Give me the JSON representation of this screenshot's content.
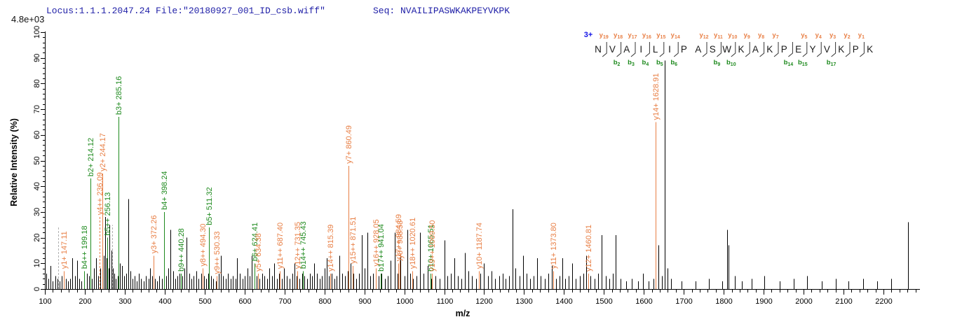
{
  "header": {
    "locus_file": "Locus:1.1.1.2047.24 File:\"20180927_001_ID_csb.wiff\"",
    "seq_label": "Seq: NVAILIPASWKAKPEYVKPK",
    "base_peak_intensity": "4.8e+03"
  },
  "chart_data": {
    "type": "bar",
    "subtype": "ms2-peptide-fragmentation-spectrum",
    "title": "",
    "xlabel": "m/z",
    "ylabel": "Relative Intensity (%)",
    "xlim": [
      100,
      2288
    ],
    "ylim": [
      0,
      100
    ],
    "x_ticks": [
      100,
      200,
      300,
      400,
      500,
      600,
      700,
      800,
      900,
      1000,
      1100,
      1200,
      1300,
      1400,
      1500,
      1600,
      1700,
      1800,
      1900,
      2000,
      2100,
      2200
    ],
    "x_minor_step": 20,
    "y_ticks": [
      0,
      10,
      20,
      30,
      40,
      50,
      60,
      70,
      80,
      90,
      100
    ],
    "y_minor_step": 2,
    "grid": false,
    "legend": "none",
    "colors": {
      "y_ion": "#e87f45",
      "b_ion": "#1e8a1e",
      "peak": "#000000",
      "dashed": "#b0b0b0",
      "header_text": "#2121a8",
      "charge": "#1414e6",
      "axis": "#000000",
      "residue": "#1a1a1a"
    },
    "sequence_annotation": {
      "charge_label": "3+",
      "residues": "NVAILIPASWKAKPEYVKPK",
      "y_ion_numbers": [
        19,
        18,
        17,
        16,
        15,
        14,
        12,
        11,
        10,
        9,
        8,
        7,
        5,
        4,
        3,
        2,
        1
      ],
      "b_ion_numbers": [
        2,
        3,
        4,
        5,
        6,
        9,
        10,
        14,
        15,
        17
      ]
    },
    "labeled_peaks": [
      {
        "label": "y1+ 147.11",
        "mz": 147.11,
        "intensity": 7,
        "series": "y"
      },
      {
        "label": "b4++ 199.18",
        "mz": 199.18,
        "intensity": 7,
        "series": "b"
      },
      {
        "label": "b2+ 214.12",
        "mz": 214.12,
        "intensity": 43,
        "series": "b"
      },
      {
        "label": "y4++ 236.09",
        "mz": 236.09,
        "intensity": 28,
        "series": "y",
        "dashed": true
      },
      {
        "label": "y2+ 244.17",
        "mz": 244.17,
        "intensity": 45,
        "series": "y"
      },
      {
        "label": "b5++ 256.13",
        "mz": 256.13,
        "intensity": 20,
        "series": "b"
      },
      {
        "label": "b3+ 285.16",
        "mz": 285.16,
        "intensity": 67,
        "series": "b"
      },
      {
        "label": "y3+ 372.26",
        "mz": 372.26,
        "intensity": 13,
        "series": "y"
      },
      {
        "label": "b4+ 398.24",
        "mz": 398.24,
        "intensity": 30,
        "series": "b"
      },
      {
        "label": "b9++ 440.28",
        "mz": 440.28,
        "intensity": 6,
        "series": "b"
      },
      {
        "label": "y8++ 494.30",
        "mz": 494.3,
        "intensity": 8,
        "series": "y"
      },
      {
        "label": "b5+ 511.32",
        "mz": 511.32,
        "intensity": 24,
        "series": "b"
      },
      {
        "label": "y9++ 530.33",
        "mz": 530.33,
        "intensity": 5,
        "series": "y"
      },
      {
        "label": "b6+ 624.41",
        "mz": 624.41,
        "intensity": 10,
        "series": "b"
      },
      {
        "label": "y5+ 634.38",
        "mz": 634.38,
        "intensity": 6,
        "series": "y"
      },
      {
        "label": "y11++ 687.40",
        "mz": 687.4,
        "intensity": 7,
        "series": "y"
      },
      {
        "label": "y12++ 731.35",
        "mz": 731.35,
        "intensity": 7,
        "series": "y"
      },
      {
        "label": "b14++ 745.43",
        "mz": 745.43,
        "intensity": 7,
        "series": "b"
      },
      {
        "label": "y14++ 815.39",
        "mz": 815.39,
        "intensity": 6,
        "series": "y"
      },
      {
        "label": "y7+ 860.49",
        "mz": 860.49,
        "intensity": 48,
        "series": "y"
      },
      {
        "label": "y15++ 871.51",
        "mz": 871.51,
        "intensity": 9,
        "series": "y"
      },
      {
        "label": "y16++ 928.05",
        "mz": 928.05,
        "intensity": 8,
        "series": "y"
      },
      {
        "label": "b17++ 941.04",
        "mz": 941.04,
        "intensity": 6,
        "series": "b"
      },
      {
        "label": "y17++ 984.59",
        "mz": 984.59,
        "intensity": 10,
        "series": "y"
      },
      {
        "label": "y8+ 988.58",
        "mz": 988.58,
        "intensity": 11,
        "series": "y"
      },
      {
        "label": "y18++ 1020.61",
        "mz": 1020.61,
        "intensity": 7,
        "series": "y"
      },
      {
        "label": "b10+ 1065.51",
        "mz": 1065.51,
        "intensity": 6,
        "series": "b"
      },
      {
        "label": "y19++ 1069.50",
        "mz": 1069.5,
        "intensity": 6,
        "series": "y"
      },
      {
        "label": "y10+ 1187.74",
        "mz": 1187.74,
        "intensity": 7,
        "series": "y"
      },
      {
        "label": "y11+ 1373.80",
        "mz": 1373.8,
        "intensity": 7,
        "series": "y"
      },
      {
        "label": "y12+ 1460.81",
        "mz": 1460.81,
        "intensity": 6,
        "series": "y"
      },
      {
        "label": "y14+ 1628.91",
        "mz": 1628.91,
        "intensity": 65,
        "series": "y"
      }
    ],
    "dashed_peaks": [
      [
        133,
        24
      ],
      [
        269,
        25
      ]
    ],
    "unlabeled_peaks": [
      [
        104,
        6
      ],
      [
        109,
        4
      ],
      [
        114,
        9
      ],
      [
        119,
        3
      ],
      [
        126,
        5
      ],
      [
        131,
        4
      ],
      [
        137,
        3
      ],
      [
        142,
        5
      ],
      [
        152,
        4
      ],
      [
        158,
        3
      ],
      [
        163,
        4
      ],
      [
        169,
        12
      ],
      [
        175,
        5
      ],
      [
        181,
        11
      ],
      [
        186,
        4
      ],
      [
        192,
        3
      ],
      [
        198,
        5
      ],
      [
        205,
        6
      ],
      [
        211,
        5
      ],
      [
        217,
        4
      ],
      [
        223,
        8
      ],
      [
        228,
        12
      ],
      [
        233,
        5
      ],
      [
        239,
        8
      ],
      [
        248,
        13
      ],
      [
        251,
        28
      ],
      [
        255,
        12
      ],
      [
        259,
        8
      ],
      [
        262,
        25
      ],
      [
        266,
        15
      ],
      [
        270,
        8
      ],
      [
        274,
        6
      ],
      [
        278,
        4
      ],
      [
        283,
        5
      ],
      [
        288,
        10
      ],
      [
        293,
        9
      ],
      [
        298,
        5
      ],
      [
        304,
        6
      ],
      [
        309,
        35
      ],
      [
        314,
        7
      ],
      [
        319,
        4
      ],
      [
        325,
        5
      ],
      [
        330,
        3
      ],
      [
        336,
        6
      ],
      [
        341,
        4
      ],
      [
        347,
        3
      ],
      [
        353,
        5
      ],
      [
        359,
        4
      ],
      [
        364,
        8
      ],
      [
        369,
        5
      ],
      [
        375,
        4
      ],
      [
        381,
        3
      ],
      [
        387,
        5
      ],
      [
        393,
        4
      ],
      [
        399,
        6
      ],
      [
        404,
        5
      ],
      [
        409,
        8
      ],
      [
        415,
        23
      ],
      [
        421,
        7
      ],
      [
        427,
        4
      ],
      [
        432,
        5
      ],
      [
        438,
        6
      ],
      [
        444,
        5
      ],
      [
        450,
        8
      ],
      [
        455,
        20
      ],
      [
        461,
        6
      ],
      [
        467,
        4
      ],
      [
        473,
        5
      ],
      [
        479,
        7
      ],
      [
        485,
        4
      ],
      [
        491,
        6
      ],
      [
        498,
        5
      ],
      [
        504,
        4
      ],
      [
        510,
        6
      ],
      [
        516,
        5
      ],
      [
        522,
        4
      ],
      [
        529,
        3
      ],
      [
        535,
        6
      ],
      [
        540,
        13
      ],
      [
        546,
        5
      ],
      [
        553,
        4
      ],
      [
        559,
        6
      ],
      [
        565,
        4
      ],
      [
        571,
        5
      ],
      [
        577,
        4
      ],
      [
        582,
        12
      ],
      [
        589,
        6
      ],
      [
        595,
        4
      ],
      [
        601,
        5
      ],
      [
        607,
        8
      ],
      [
        613,
        5
      ],
      [
        618,
        13
      ],
      [
        625,
        6
      ],
      [
        631,
        5
      ],
      [
        638,
        4
      ],
      [
        644,
        6
      ],
      [
        650,
        5
      ],
      [
        656,
        4
      ],
      [
        662,
        8
      ],
      [
        669,
        5
      ],
      [
        674,
        10
      ],
      [
        681,
        4
      ],
      [
        687,
        6
      ],
      [
        694,
        4
      ],
      [
        699,
        8
      ],
      [
        706,
        5
      ],
      [
        712,
        4
      ],
      [
        719,
        6
      ],
      [
        725,
        10
      ],
      [
        731,
        5
      ],
      [
        738,
        4
      ],
      [
        744,
        6
      ],
      [
        750,
        5
      ],
      [
        757,
        4
      ],
      [
        763,
        6
      ],
      [
        769,
        5
      ],
      [
        775,
        10
      ],
      [
        781,
        6
      ],
      [
        788,
        4
      ],
      [
        794,
        5
      ],
      [
        800,
        8
      ],
      [
        806,
        12
      ],
      [
        812,
        5
      ],
      [
        818,
        6
      ],
      [
        825,
        4
      ],
      [
        831,
        5
      ],
      [
        838,
        13
      ],
      [
        845,
        6
      ],
      [
        852,
        5
      ],
      [
        858,
        7
      ],
      [
        866,
        10
      ],
      [
        872,
        6
      ],
      [
        879,
        4
      ],
      [
        886,
        6
      ],
      [
        893,
        21
      ],
      [
        900,
        8
      ],
      [
        907,
        22
      ],
      [
        914,
        5
      ],
      [
        921,
        6
      ],
      [
        929,
        4
      ],
      [
        936,
        5
      ],
      [
        943,
        6
      ],
      [
        951,
        4
      ],
      [
        958,
        5
      ],
      [
        966,
        11
      ],
      [
        977,
        22
      ],
      [
        983,
        6
      ],
      [
        990,
        13
      ],
      [
        1000,
        5
      ],
      [
        1007,
        23
      ],
      [
        1014,
        6
      ],
      [
        1022,
        4
      ],
      [
        1031,
        5
      ],
      [
        1039,
        22
      ],
      [
        1048,
        6
      ],
      [
        1058,
        9
      ],
      [
        1068,
        4
      ],
      [
        1078,
        5
      ],
      [
        1088,
        4
      ],
      [
        1100,
        19
      ],
      [
        1108,
        5
      ],
      [
        1117,
        6
      ],
      [
        1126,
        12
      ],
      [
        1135,
        5
      ],
      [
        1143,
        4
      ],
      [
        1151,
        14
      ],
      [
        1161,
        7
      ],
      [
        1170,
        5
      ],
      [
        1180,
        4
      ],
      [
        1190,
        6
      ],
      [
        1200,
        10
      ],
      [
        1210,
        5
      ],
      [
        1219,
        7
      ],
      [
        1228,
        4
      ],
      [
        1237,
        5
      ],
      [
        1246,
        6
      ],
      [
        1254,
        4
      ],
      [
        1263,
        5
      ],
      [
        1271,
        31
      ],
      [
        1279,
        8
      ],
      [
        1288,
        5
      ],
      [
        1297,
        13
      ],
      [
        1306,
        6
      ],
      [
        1315,
        4
      ],
      [
        1324,
        5
      ],
      [
        1333,
        12
      ],
      [
        1342,
        5
      ],
      [
        1352,
        4
      ],
      [
        1361,
        6
      ],
      [
        1369,
        9
      ],
      [
        1380,
        4
      ],
      [
        1388,
        5
      ],
      [
        1395,
        12
      ],
      [
        1403,
        4
      ],
      [
        1412,
        5
      ],
      [
        1420,
        10
      ],
      [
        1430,
        4
      ],
      [
        1440,
        5
      ],
      [
        1448,
        6
      ],
      [
        1456,
        13
      ],
      [
        1466,
        5
      ],
      [
        1476,
        4
      ],
      [
        1486,
        6
      ],
      [
        1494,
        21
      ],
      [
        1504,
        5
      ],
      [
        1513,
        4
      ],
      [
        1522,
        6
      ],
      [
        1530,
        21
      ],
      [
        1542,
        4
      ],
      [
        1556,
        3
      ],
      [
        1570,
        4
      ],
      [
        1585,
        3
      ],
      [
        1598,
        6
      ],
      [
        1612,
        3
      ],
      [
        1625,
        4
      ],
      [
        1636,
        17
      ],
      [
        1645,
        5
      ],
      [
        1652,
        89
      ],
      [
        1660,
        8
      ],
      [
        1668,
        4
      ],
      [
        1695,
        3
      ],
      [
        1730,
        3
      ],
      [
        1762,
        4
      ],
      [
        1796,
        3
      ],
      [
        1808,
        23
      ],
      [
        1812,
        17
      ],
      [
        1827,
        5
      ],
      [
        1845,
        3
      ],
      [
        1870,
        4
      ],
      [
        1902,
        5
      ],
      [
        1940,
        3
      ],
      [
        1975,
        4
      ],
      [
        2008,
        5
      ],
      [
        2045,
        3
      ],
      [
        2080,
        4
      ],
      [
        2112,
        3
      ],
      [
        2150,
        4
      ],
      [
        2185,
        3
      ],
      [
        2220,
        4
      ],
      [
        2262,
        26
      ]
    ]
  }
}
